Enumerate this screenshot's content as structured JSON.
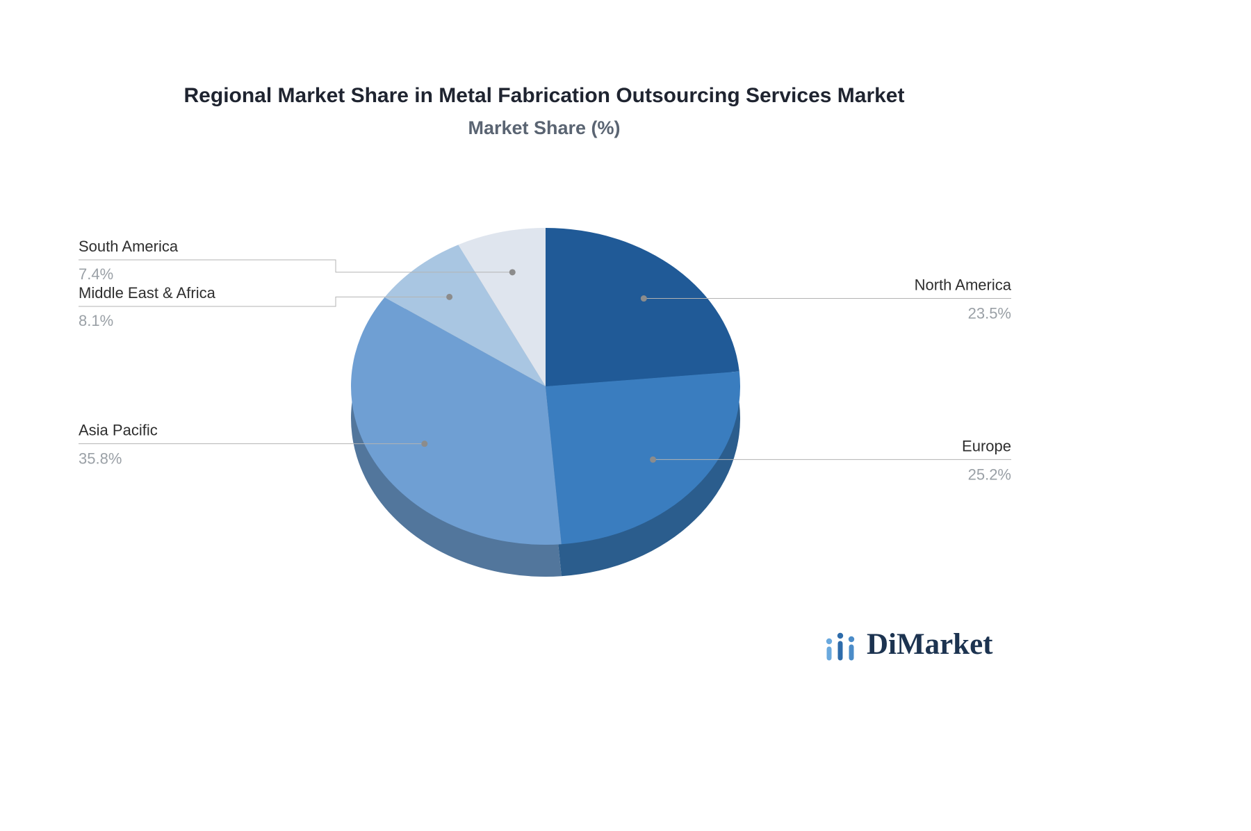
{
  "chart": {
    "title": "Regional Market Share in Metal Fabrication Outsourcing Services Market",
    "subtitle": "Market Share (%)"
  },
  "branding": {
    "logo_text": "DiMarket",
    "logo_icon": "bar-chart-dots-icon",
    "logo_color": "#1c3350",
    "logo_icon_blue": "#3579bd"
  },
  "chart_data": {
    "type": "pie",
    "title": "Regional Market Share in Metal Fabrication Outsourcing Services Market",
    "subtitle": "Market Share (%)",
    "unit": "%",
    "labels": [
      "North America",
      "Europe",
      "Asia Pacific",
      "Middle East & Africa",
      "South America"
    ],
    "values": [
      23.5,
      25.2,
      35.8,
      8.1,
      7.4
    ],
    "display_values": [
      "23.5%",
      "25.2%",
      "35.8%",
      "8.1%",
      "7.4%"
    ],
    "colors": [
      "#205a97",
      "#3a7dbf",
      "#6f9fd3",
      "#a9c6e2",
      "#dfe5ee"
    ],
    "start_angle_deg": 0,
    "direction": "clockwise",
    "effect_3d": true,
    "legend_position": "none",
    "background": "#ffffff"
  }
}
